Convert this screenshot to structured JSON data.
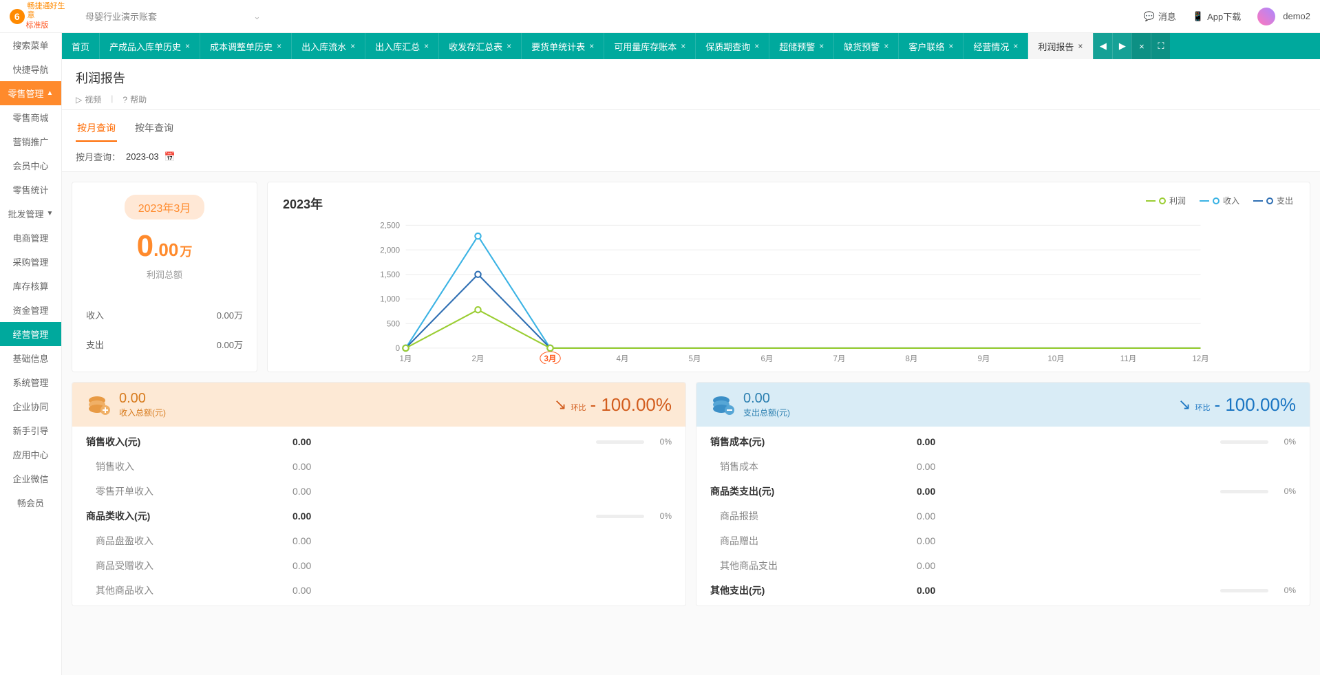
{
  "header": {
    "logo_char": "6",
    "logo_text": "畅捷通好生意",
    "edition": "标准版",
    "account_select": "母婴行业演示账套",
    "messages_label": "消息",
    "app_download_label": "App下载",
    "username": "demo2"
  },
  "sidebar": {
    "items": [
      {
        "label": "搜索菜单",
        "name": "sidebar-search"
      },
      {
        "label": "快捷导航",
        "name": "sidebar-quicknav"
      },
      {
        "label": "零售管理",
        "name": "sidebar-retail",
        "active_orange": true,
        "caret": "▲"
      },
      {
        "label": "零售商城",
        "name": "sidebar-retail-mall"
      },
      {
        "label": "营销推广",
        "name": "sidebar-marketing"
      },
      {
        "label": "会员中心",
        "name": "sidebar-members"
      },
      {
        "label": "零售统计",
        "name": "sidebar-retail-stats"
      },
      {
        "label": "批发管理",
        "name": "sidebar-wholesale",
        "caret": "▼"
      },
      {
        "label": "电商管理",
        "name": "sidebar-ecommerce"
      },
      {
        "label": "采购管理",
        "name": "sidebar-purchase"
      },
      {
        "label": "库存核算",
        "name": "sidebar-inventory"
      },
      {
        "label": "资金管理",
        "name": "sidebar-funds"
      },
      {
        "label": "经营管理",
        "name": "sidebar-operations",
        "active_teal": true
      },
      {
        "label": "基础信息",
        "name": "sidebar-basicinfo"
      },
      {
        "label": "系统管理",
        "name": "sidebar-system"
      },
      {
        "label": "企业协同",
        "name": "sidebar-collab"
      },
      {
        "label": "新手引导",
        "name": "sidebar-guide"
      },
      {
        "label": "应用中心",
        "name": "sidebar-appcenter"
      },
      {
        "label": "企业微信",
        "name": "sidebar-wechat"
      },
      {
        "label": "畅会员",
        "name": "sidebar-vip"
      }
    ]
  },
  "tabs": {
    "home": "首页",
    "items": [
      {
        "label": "产成品入库单历史"
      },
      {
        "label": "成本调整单历史"
      },
      {
        "label": "出入库流水"
      },
      {
        "label": "出入库汇总"
      },
      {
        "label": "收发存汇总表"
      },
      {
        "label": "要货单统计表"
      },
      {
        "label": "可用量库存账本"
      },
      {
        "label": "保质期查询"
      },
      {
        "label": "超储预警"
      },
      {
        "label": "缺货预警"
      },
      {
        "label": "客户联络"
      },
      {
        "label": "经营情况"
      },
      {
        "label": "利润报告",
        "active": true
      }
    ]
  },
  "page": {
    "title": "利润报告",
    "video_label": "视频",
    "help_label": "帮助",
    "query_month_tab": "按月查询",
    "query_year_tab": "按年查询",
    "query_label": "按月查询：",
    "query_date": "2023-03"
  },
  "summary": {
    "month_badge": "2023年3月",
    "profit_int": "0",
    "profit_dec": ".00",
    "profit_unit": "万",
    "profit_label": "利润总额",
    "income_label": "收入",
    "income_value": "0.00万",
    "expense_label": "支出",
    "expense_value": "0.00万"
  },
  "chart": {
    "title": "2023年",
    "type": "line",
    "legend": [
      {
        "label": "利润",
        "color": "#9acd32"
      },
      {
        "label": "收入",
        "color": "#3bb3e4"
      },
      {
        "label": "支出",
        "color": "#2f6fb3"
      }
    ],
    "x_labels": [
      "1月",
      "2月",
      "3月",
      "4月",
      "5月",
      "6月",
      "7月",
      "8月",
      "9月",
      "10月",
      "11月",
      "12月"
    ],
    "current_month_index": 2,
    "ylim": [
      0,
      2500
    ],
    "ytick_step": 500,
    "y_ticks": [
      "0",
      "500",
      "1,000",
      "1,500",
      "2,000",
      "2,500"
    ],
    "grid_color": "#eeeeee",
    "axis_color": "#cccccc",
    "label_color": "#888888",
    "label_fontsize": 11,
    "marker_radius": 4,
    "line_width": 2,
    "background_color": "#ffffff",
    "series": {
      "profit": [
        0,
        780,
        0,
        0,
        0,
        0,
        0,
        0,
        0,
        0,
        0,
        0
      ],
      "income": [
        0,
        2280,
        0,
        0,
        0,
        0,
        0,
        0,
        0,
        0,
        0,
        0
      ],
      "expense": [
        0,
        1500,
        0,
        0,
        0,
        0,
        0,
        0,
        0,
        0,
        0,
        0
      ]
    }
  },
  "income_panel": {
    "amount": "0.00",
    "label": "收入总额(元)",
    "delta_pct": "- 100.00%",
    "delta_label": "环比",
    "rows": [
      {
        "name": "销售收入(元)",
        "val": "0.00",
        "pct": "0%",
        "bold": true
      },
      {
        "name": "销售收入",
        "val": "0.00",
        "sub": true
      },
      {
        "name": "零售开单收入",
        "val": "0.00",
        "sub": true
      },
      {
        "name": "商品类收入(元)",
        "val": "0.00",
        "pct": "0%",
        "bold": true
      },
      {
        "name": "商品盘盈收入",
        "val": "0.00",
        "sub": true
      },
      {
        "name": "商品受赠收入",
        "val": "0.00",
        "sub": true
      },
      {
        "name": "其他商品收入",
        "val": "0.00",
        "sub": true
      }
    ]
  },
  "expense_panel": {
    "amount": "0.00",
    "label": "支出总额(元)",
    "delta_pct": "- 100.00%",
    "delta_label": "环比",
    "rows": [
      {
        "name": "销售成本(元)",
        "val": "0.00",
        "pct": "0%",
        "bold": true
      },
      {
        "name": "销售成本",
        "val": "0.00",
        "sub": true
      },
      {
        "name": "商品类支出(元)",
        "val": "0.00",
        "pct": "0%",
        "bold": true
      },
      {
        "name": "商品报损",
        "val": "0.00",
        "sub": true
      },
      {
        "name": "商品赠出",
        "val": "0.00",
        "sub": true
      },
      {
        "name": "其他商品支出",
        "val": "0.00",
        "sub": true
      },
      {
        "name": "其他支出(元)",
        "val": "0.00",
        "pct": "0%",
        "bold": true
      }
    ]
  }
}
